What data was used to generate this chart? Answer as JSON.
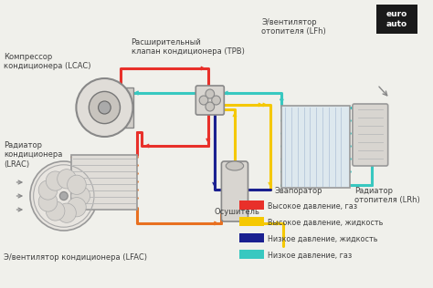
{
  "bg_color": "#f0f0eb",
  "logo_bg": "#1a1a1a",
  "logo_text": "euro\nauto",
  "logo_color": "#ffffff",
  "label_color": "#404040",
  "label_fontsize": 6.0,
  "legend_items": [
    {
      "label": "Высокое давление, газ",
      "color": "#e8302a"
    },
    {
      "label": "Высокое давление, жидкость",
      "color": "#f5c800"
    },
    {
      "label": "Низкое давление, жидкость",
      "color": "#1a2090"
    },
    {
      "label": "Низкое давление, газ",
      "color": "#38c8c0"
    }
  ],
  "pipe_lw": 2.2,
  "red": "#e8302a",
  "orange": "#e87020",
  "yellow": "#f5c800",
  "blue": "#1a2090",
  "cyan": "#38c8c0",
  "gray": "#aaaaaa",
  "dark_gray": "#888888"
}
